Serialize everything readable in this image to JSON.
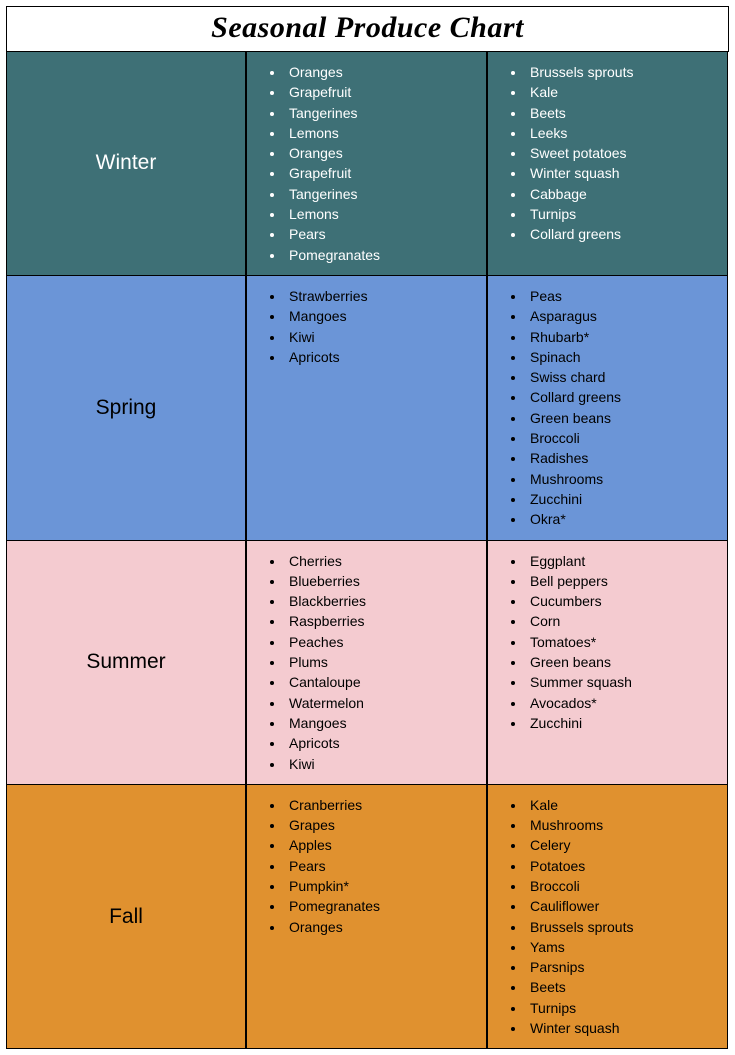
{
  "title": "Seasonal Produce Chart",
  "seasons": [
    {
      "name": "Winter",
      "bg_color": "#3e7076",
      "text_mode": "light",
      "col1": [
        "Oranges",
        "Grapefruit",
        "Tangerines",
        "Lemons",
        "Oranges",
        "Grapefruit",
        "Tangerines",
        "Lemons",
        "Pears",
        "Pomegranates"
      ],
      "col2": [
        "Brussels sprouts",
        "Kale",
        "Beets",
        "Leeks",
        "Sweet potatoes",
        "Winter squash",
        "Cabbage",
        "Turnips",
        "Collard greens"
      ]
    },
    {
      "name": "Spring",
      "bg_color": "#6b95d7",
      "text_mode": "dark",
      "col1": [
        "Strawberries",
        "Mangoes",
        "Kiwi",
        "Apricots"
      ],
      "col2": [
        "Peas",
        "Asparagus",
        "Rhubarb*",
        "Spinach",
        "Swiss chard",
        "Collard greens",
        "Green beans",
        "Broccoli",
        "Radishes",
        "Mushrooms",
        "Zucchini",
        "Okra*"
      ]
    },
    {
      "name": "Summer",
      "bg_color": "#f4cbd0",
      "text_mode": "dark",
      "col1": [
        "Cherries",
        "Blueberries",
        "Blackberries",
        "Raspberries",
        "Peaches",
        "Plums",
        "Cantaloupe",
        "Watermelon",
        "Mangoes",
        "Apricots",
        "Kiwi"
      ],
      "col2": [
        "Eggplant",
        "Bell peppers",
        "Cucumbers",
        "Corn",
        "Tomatoes*",
        "Green beans",
        "Summer squash",
        "Avocados*",
        "Zucchini"
      ]
    },
    {
      "name": "Fall",
      "bg_color": "#e0912f",
      "text_mode": "dark",
      "col1": [
        "Cranberries",
        "Grapes",
        "Apples",
        "Pears",
        "Pumpkin*",
        "Pomegranates",
        "Oranges"
      ],
      "col2": [
        "Kale",
        "Mushrooms",
        "Celery",
        "Potatoes",
        "Broccoli",
        "Cauliflower",
        "Brussels sprouts",
        "Yams",
        "Parsnips",
        "Beets",
        "Turnips",
        "Winter squash"
      ]
    }
  ]
}
